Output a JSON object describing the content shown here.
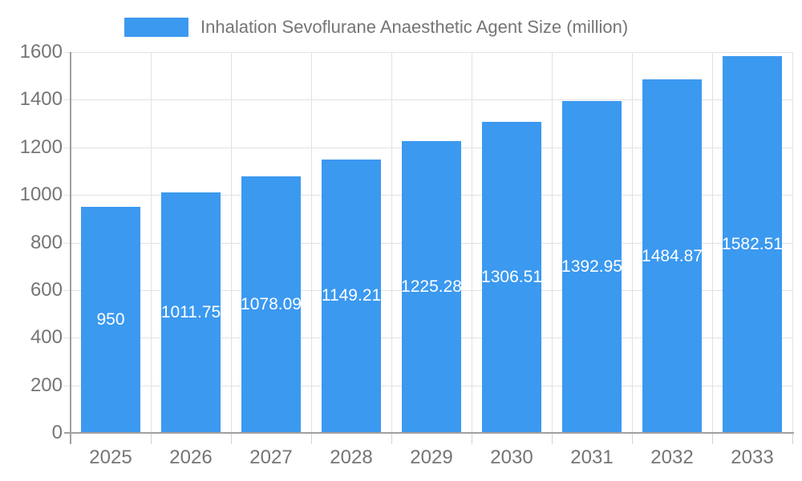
{
  "legend": {
    "label": "Inhalation Sevoflurane Anaesthetic Agent Size (million)",
    "swatch_color": "#3b99f0"
  },
  "chart_data": {
    "type": "bar",
    "title": "Inhalation Sevoflurane Anaesthetic Agent Size (million)",
    "categories": [
      "2025",
      "2026",
      "2027",
      "2028",
      "2029",
      "2030",
      "2031",
      "2032",
      "2033"
    ],
    "values": [
      950,
      1011.75,
      1078.09,
      1149.21,
      1225.28,
      1306.51,
      1392.95,
      1484.87,
      1582.51
    ],
    "bar_labels": [
      "950",
      "1011.75",
      "1078.09",
      "1149.21",
      "1225.28",
      "1306.51",
      "1392.95",
      "1484.87",
      "1582.51"
    ],
    "series": [
      {
        "name": "Inhalation Sevoflurane Anaesthetic Agent Size (million)",
        "values": [
          950,
          1011.75,
          1078.09,
          1149.21,
          1225.28,
          1306.51,
          1392.95,
          1484.87,
          1582.51
        ]
      }
    ],
    "xlabel": "",
    "ylabel": "",
    "ylim": [
      0,
      1600
    ],
    "yticks": [
      0,
      200,
      400,
      600,
      800,
      1000,
      1200,
      1400,
      1600
    ],
    "grid": true,
    "legend_position": "top",
    "bar_color": "#3b99f0",
    "bar_label_color": "#ffffff",
    "axis_line_color": "#a0a0a0",
    "grid_color": "#e2e2e2",
    "tick_text_color": "#757575"
  }
}
